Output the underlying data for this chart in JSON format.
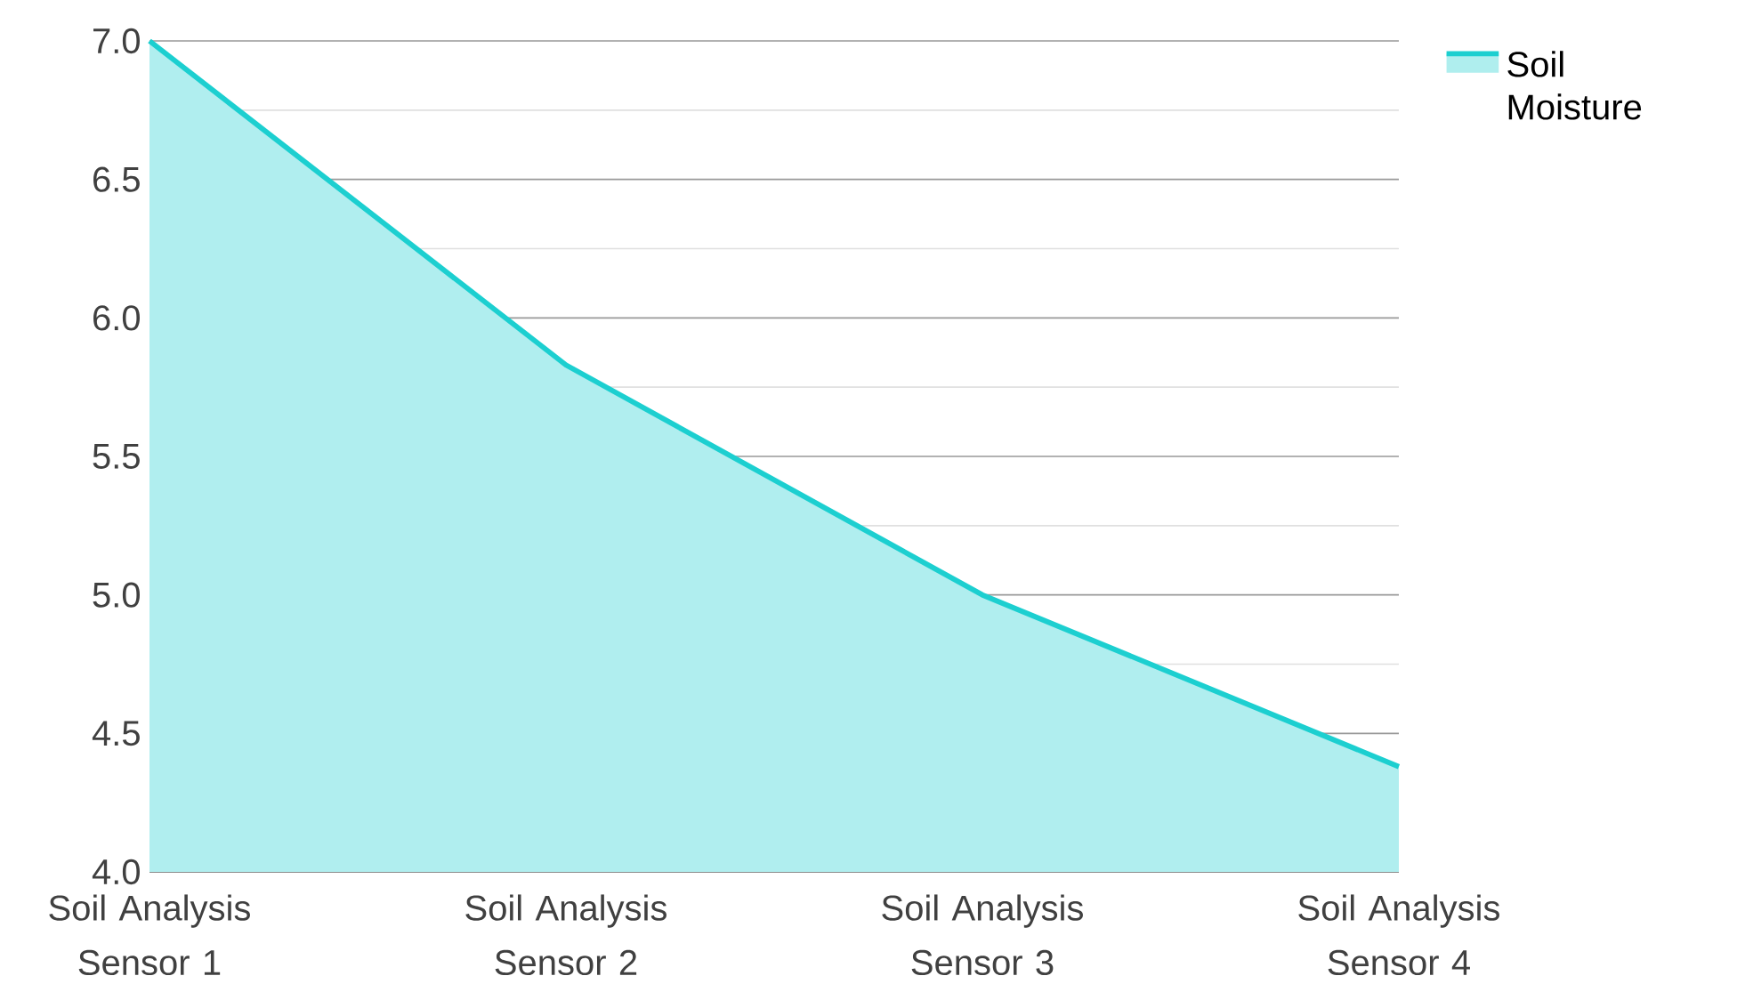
{
  "chart_data": {
    "type": "area",
    "categories": [
      "Soil Analysis Sensor 1",
      "Soil Analysis Sensor 2",
      "Soil Analysis Sensor 3",
      "Soil Analysis Sensor 4"
    ],
    "series": [
      {
        "name": "Soil Moisture",
        "color": "#1ccfd0",
        "values": [
          7.0,
          5.83,
          5.0,
          4.38
        ]
      }
    ],
    "ylim": [
      4.0,
      7.0
    ],
    "yticks": [
      {
        "value": 4.0,
        "label": "4.0"
      },
      {
        "value": 4.5,
        "label": "4.5"
      },
      {
        "value": 5.0,
        "label": "5.0"
      },
      {
        "value": 5.5,
        "label": "5.5"
      },
      {
        "value": 6.0,
        "label": "6.0"
      },
      {
        "value": 6.5,
        "label": "6.5"
      },
      {
        "value": 7.0,
        "label": "7.0"
      }
    ],
    "grid": "y",
    "legend": "top right"
  }
}
